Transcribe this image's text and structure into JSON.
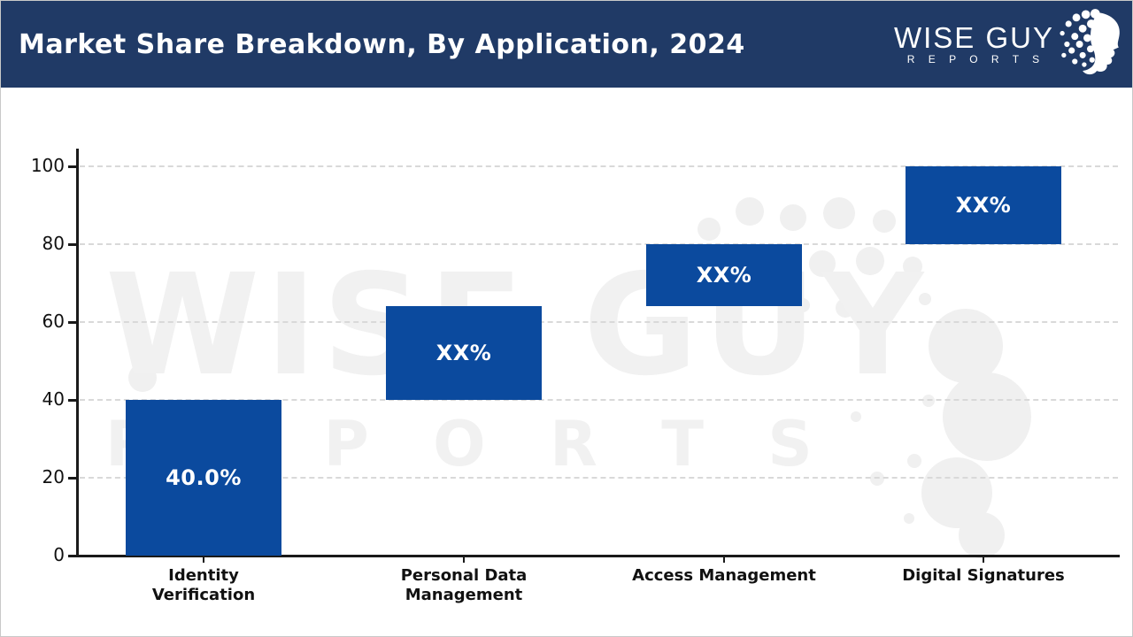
{
  "header": {
    "title": "Market Share Breakdown, By Application, 2024",
    "logo": {
      "line1": "WISE GUY",
      "line2": "R E P O R T S",
      "icon": "dotted-face-profile"
    }
  },
  "watermark": {
    "line1": "WISE GUY",
    "line2": "R E P O R T S"
  },
  "chart_data": {
    "type": "bar",
    "subtype": "waterfall",
    "title": "Market Share Breakdown, By Application, 2024",
    "categories": [
      [
        "Identity",
        "Verification"
      ],
      [
        "Personal Data",
        "Management"
      ],
      [
        "Access Management"
      ],
      [
        "Digital Signatures"
      ]
    ],
    "segments": [
      {
        "category": "Identity Verification",
        "start": 0,
        "end": 40,
        "label": "40.0%"
      },
      {
        "category": "Personal Data Management",
        "start": 40,
        "end": 64,
        "label": "XX%"
      },
      {
        "category": "Access Management",
        "start": 64,
        "end": 80,
        "label": "XX%"
      },
      {
        "category": "Digital Signatures",
        "start": 80,
        "end": 100,
        "label": "XX%"
      }
    ],
    "xlabel": "",
    "ylabel": "",
    "ylim": [
      0,
      100
    ],
    "yticks": [
      0,
      20,
      40,
      60,
      80,
      100
    ],
    "grid": "horizontal-dashed",
    "legend": "none",
    "bar_color": "#0b4a9e",
    "bar_label_color": "#ffffff"
  },
  "colors": {
    "header_bg": "#203a66",
    "header_text": "#ffffff",
    "bar": "#0b4a9e",
    "axis": "#1a1a1a",
    "grid": "#d9d9d9",
    "watermark": "#f1f1f1",
    "chart_bg": "#ffffff"
  }
}
